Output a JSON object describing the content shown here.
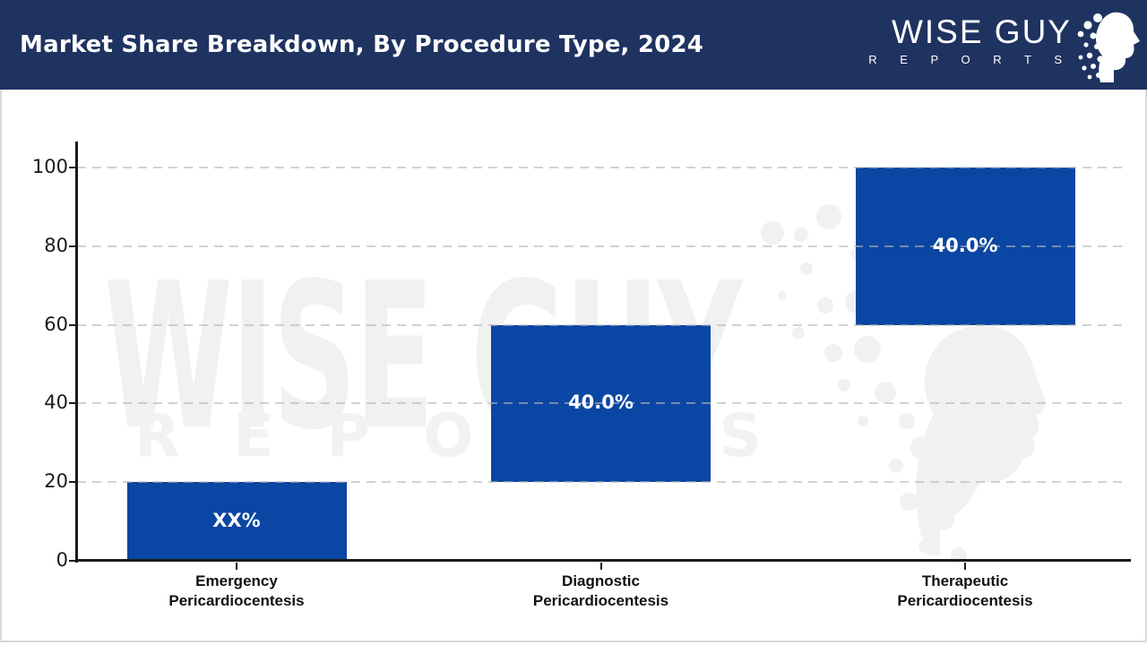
{
  "header": {
    "title": "Market Share Breakdown, By Procedure Type, 2024",
    "logo": {
      "line1": "WISE GUY",
      "line2": "R E P O R T S"
    }
  },
  "watermark": {
    "line1": "WISE GUY",
    "letters2": [
      "R",
      "E",
      "P",
      "O",
      "R",
      "T",
      "S"
    ]
  },
  "colors": {
    "header_bg": "#1f3361",
    "bar": "#0a46a3",
    "grid": "#dcdcdc",
    "axis": "#1a1a1a",
    "bar_label": "#ffffff",
    "frame_border": "#d9d9d9",
    "watermark": "#f1f1f2"
  },
  "chart_data": {
    "type": "bar",
    "subtype": "floating-segment (waterfall style)",
    "title": "Market Share Breakdown, By Procedure Type, 2024",
    "categories": [
      "Emergency Pericardiocentesis",
      "Diagnostic Pericardiocentesis",
      "Therapeutic Pericardiocentesis"
    ],
    "bars": [
      {
        "category_lines": [
          "Emergency",
          "Pericardiocentesis"
        ],
        "start": 0,
        "end": 20,
        "label": "XX%"
      },
      {
        "category_lines": [
          "Diagnostic",
          "Pericardiocentesis"
        ],
        "start": 20,
        "end": 60,
        "label": "40.0%"
      },
      {
        "category_lines": [
          "Therapeutic",
          "Pericardiocentesis"
        ],
        "start": 60,
        "end": 100,
        "label": "40.0%"
      }
    ],
    "yticks": [
      0,
      20,
      40,
      60,
      80,
      100
    ],
    "ylim": [
      0,
      106
    ],
    "xlabel": "",
    "ylabel": "",
    "grid": "horizontal dashed, drawn over bars",
    "legend": "none"
  }
}
